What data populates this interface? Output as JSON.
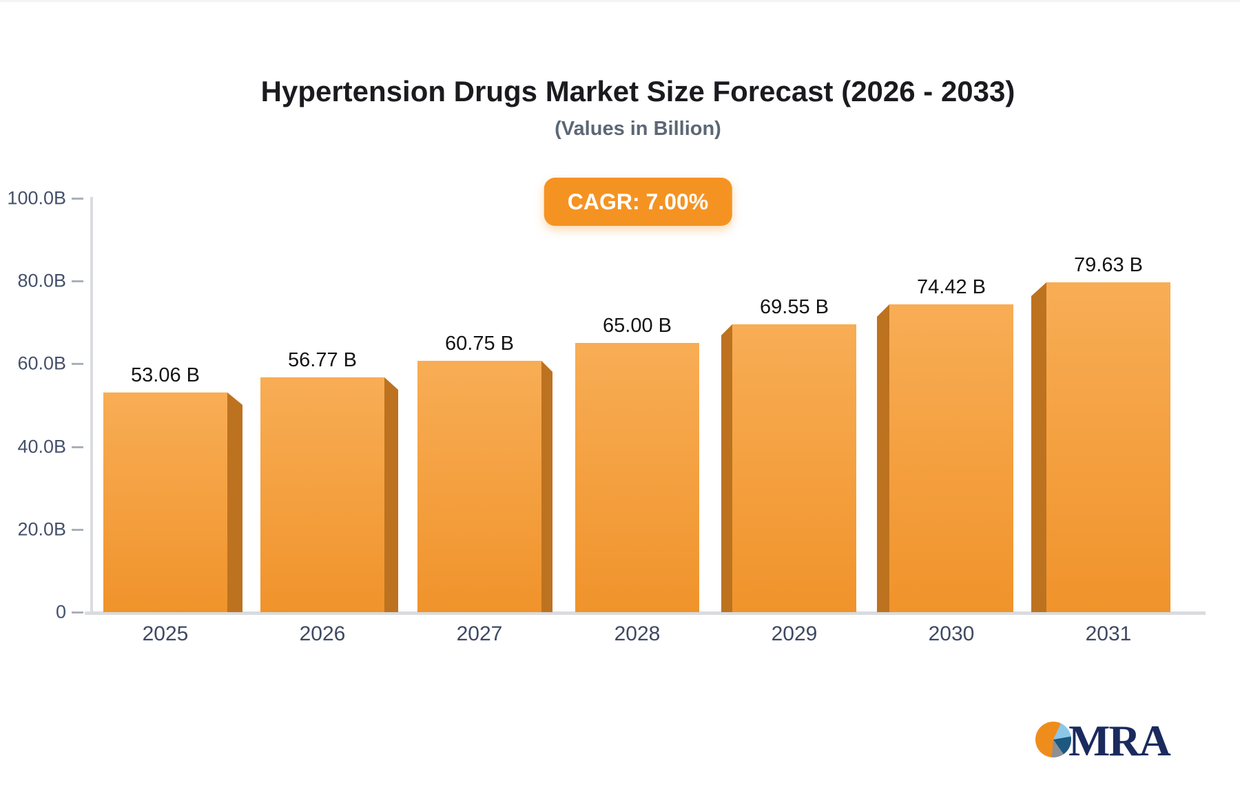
{
  "header": {
    "title": "Hypertension Drugs Market Size Forecast (2026 - 2033)",
    "subtitle": "(Values in Billion)"
  },
  "badge": {
    "label": "CAGR: 7.00%",
    "bg_color": "#f59322",
    "text_color": "#ffffff"
  },
  "chart_data": {
    "type": "bar",
    "title": "Hypertension Drugs Market Size Forecast (2026 - 2033)",
    "subtitle": "(Values in Billion)",
    "categories": [
      "2025",
      "2026",
      "2027",
      "2028",
      "2029",
      "2030",
      "2031"
    ],
    "values": [
      53.06,
      56.77,
      60.75,
      65.0,
      69.55,
      74.42,
      79.63
    ],
    "value_labels": [
      "53.06 B",
      "56.77 B",
      "60.75 B",
      "65.00 B",
      "69.55 B",
      "74.42 B",
      "79.63 B"
    ],
    "unit": "Billion",
    "xlabel": "",
    "ylabel": "",
    "ylim": [
      0,
      100
    ],
    "y_ticks": [
      {
        "value": 0,
        "label": "0"
      },
      {
        "value": 20,
        "label": "20.0B"
      },
      {
        "value": 40,
        "label": "40.0B"
      },
      {
        "value": 60,
        "label": "60.0B"
      },
      {
        "value": 80,
        "label": "80.0B"
      },
      {
        "value": 100,
        "label": "100.0B"
      }
    ],
    "grid": false,
    "legend": null,
    "bar_style": "3d-extruded",
    "colors": {
      "bar_top": "#f8ad55",
      "bar_bottom": "#f0932b",
      "bar_side": "#bd7220",
      "axis_line": "#d9dbde",
      "tick_dash": "#aab0ba",
      "tick_text": "#45516b",
      "value_text": "#141414"
    }
  },
  "logo": {
    "text": "MRA",
    "text_color": "#1b2a5e",
    "pie_colors": {
      "orange": "#ef8d1c",
      "light_blue": "#8cc7e8",
      "navy": "#1d5880",
      "gray": "#8f8f95"
    }
  }
}
